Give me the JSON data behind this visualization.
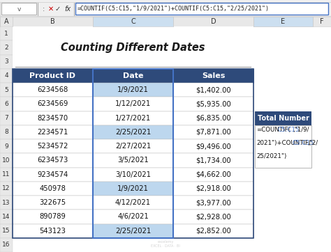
{
  "title": "Counting Different Dates",
  "formula_bar_text": "=COUNTIF(C5:C15,\"1/9/2021\")+COUNTIF(C5:C15,\"2/25/2021\")",
  "headers": [
    "Product ID",
    "Date",
    "Sales"
  ],
  "rows": [
    [
      "6234568",
      "1/9/2021",
      "$1,402.00"
    ],
    [
      "6234569",
      "1/12/2021",
      "$5,935.00"
    ],
    [
      "8234570",
      "1/27/2021",
      "$6,835.00"
    ],
    [
      "2234571",
      "2/25/2021",
      "$7,871.00"
    ],
    [
      "5234572",
      "2/27/2021",
      "$9,496.00"
    ],
    [
      "6234573",
      "3/5/2021",
      "$1,734.00"
    ],
    [
      "9234574",
      "3/10/2021",
      "$4,662.00"
    ],
    [
      "450978",
      "1/9/2021",
      "$2,918.00"
    ],
    [
      "322675",
      "4/12/2021",
      "$3,977.00"
    ],
    [
      "890789",
      "4/6/2021",
      "$2,928.00"
    ],
    [
      "543123",
      "2/25/2021",
      "$2,852.00"
    ]
  ],
  "highlighted_date_rows": [
    0,
    3,
    7,
    10
  ],
  "header_bg": "#2E4A7A",
  "header_fg": "#FFFFFF",
  "row_bg_normal": "#FFFFFF",
  "col_highlight_color": "#BDD7EE",
  "total_number_label": "Total Number",
  "total_number_bg": "#2E4A7A",
  "total_number_fg": "#FFFFFF",
  "formula_highlight_color": "#4472C4",
  "col_letters": [
    "A",
    "B",
    "C",
    "D",
    "E",
    "F"
  ],
  "row_numbers": [
    "1",
    "2",
    "3",
    "4",
    "5",
    "6",
    "7",
    "8",
    "9",
    "10",
    "11",
    "12",
    "13",
    "14",
    "15",
    "16"
  ],
  "excel_bg": "#F0F0F0",
  "header_row_bg": "#E8E8E8",
  "selected_col_bg": "#CCDFF0",
  "grid_color": "#CCCCCC",
  "border_color": "#2E4A7A",
  "date_col_border": "#4472C4"
}
